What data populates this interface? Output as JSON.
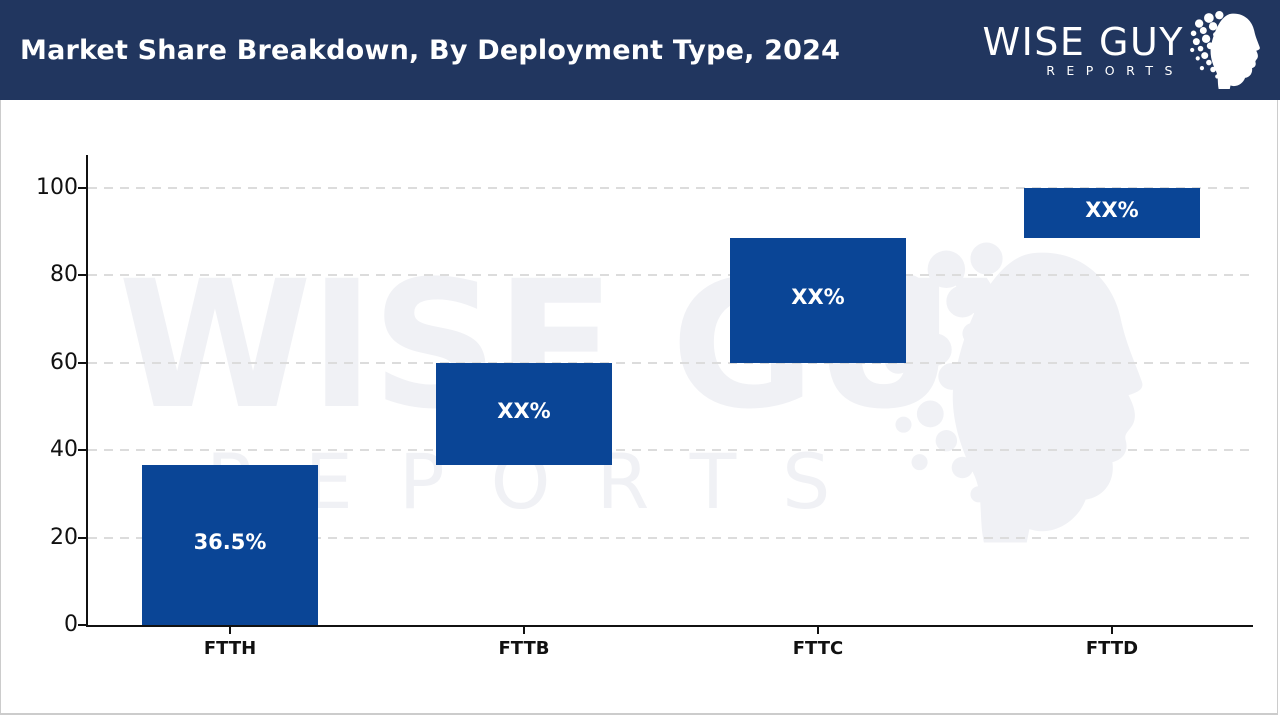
{
  "header": {
    "title": "Market Share Breakdown, By Deployment Type, 2024",
    "logo": {
      "line1": "WISE GUY",
      "line2": "REPORTS",
      "icon": "dotted-head-profile-icon"
    }
  },
  "watermark": {
    "line1": "WISE GUY",
    "line2": "REPORTS",
    "icon": "dotted-head-profile-icon"
  },
  "colors": {
    "header_bg": "#21365f",
    "bar_blue": "#0a4596",
    "gridline": "#dcdcdc",
    "axis": "#111111",
    "watermark": "#f0f1f5",
    "bar_label": "#ffffff"
  },
  "chart_data": {
    "type": "bar",
    "subtype": "waterfall",
    "title": "Market Share Breakdown, By Deployment Type, 2024",
    "xlabel": "",
    "ylabel": "",
    "ylim": [
      0,
      100
    ],
    "yticks": [
      0,
      20,
      40,
      60,
      80,
      100
    ],
    "grid": "horizontal-dashed",
    "legend": "none",
    "bar_color": "#0a4596",
    "categories": [
      "FTTH",
      "FTTB",
      "FTTC",
      "FTTD"
    ],
    "segments": [
      {
        "category": "FTTH",
        "start": 0,
        "end": 36.5,
        "label": "36.5%"
      },
      {
        "category": "FTTB",
        "start": 36.5,
        "end": 60,
        "label": "XX%"
      },
      {
        "category": "FTTC",
        "start": 60,
        "end": 88.5,
        "label": "XX%"
      },
      {
        "category": "FTTD",
        "start": 88.5,
        "end": 100,
        "label": "XX%"
      }
    ]
  }
}
